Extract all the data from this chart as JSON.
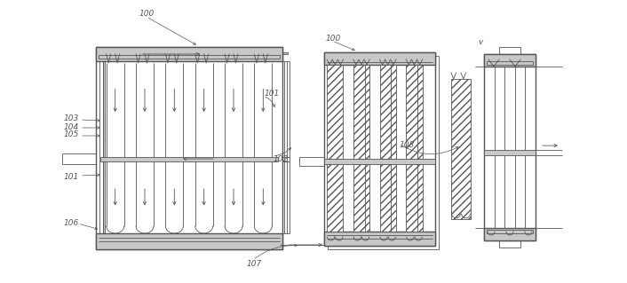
{
  "bg_color": "#ffffff",
  "line_color": "#555555",
  "gray_fill": "#c8c8c8",
  "gray_mid": "#aaaaaa",
  "figsize": [
    7.06,
    3.19
  ],
  "dpi": 100,
  "fs": 6.5
}
